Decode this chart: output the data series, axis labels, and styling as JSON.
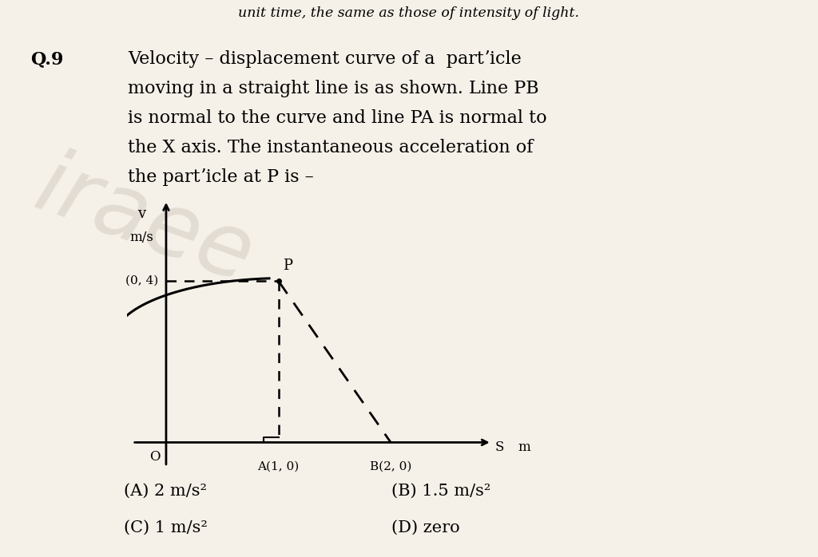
{
  "bg_color": "#f5f0e8",
  "watermark_text": "iraee",
  "top_text": "unit time, the same as those of intensity of light.",
  "question_number": "Q.9",
  "ylabel_top": "v",
  "ylabel_bot": "m/s",
  "xlabel_text": "S",
  "xlabel_unit": "m",
  "label_04": "(0, 4)",
  "label_A": "A(1, 0)",
  "label_B": "B(2, 0)",
  "label_O": "O",
  "label_P": "P",
  "options_A": "(A) 2 m/s²",
  "options_B": "(B) 1.5 m/s²",
  "options_C": "(C) 1 m/s²",
  "options_D": "(D) zero",
  "axis_color": "#000000",
  "curve_color": "#000000",
  "dashed_color": "#000000",
  "text_color": "#000000",
  "fig_width": 10.24,
  "fig_height": 6.98,
  "dpi": 100
}
